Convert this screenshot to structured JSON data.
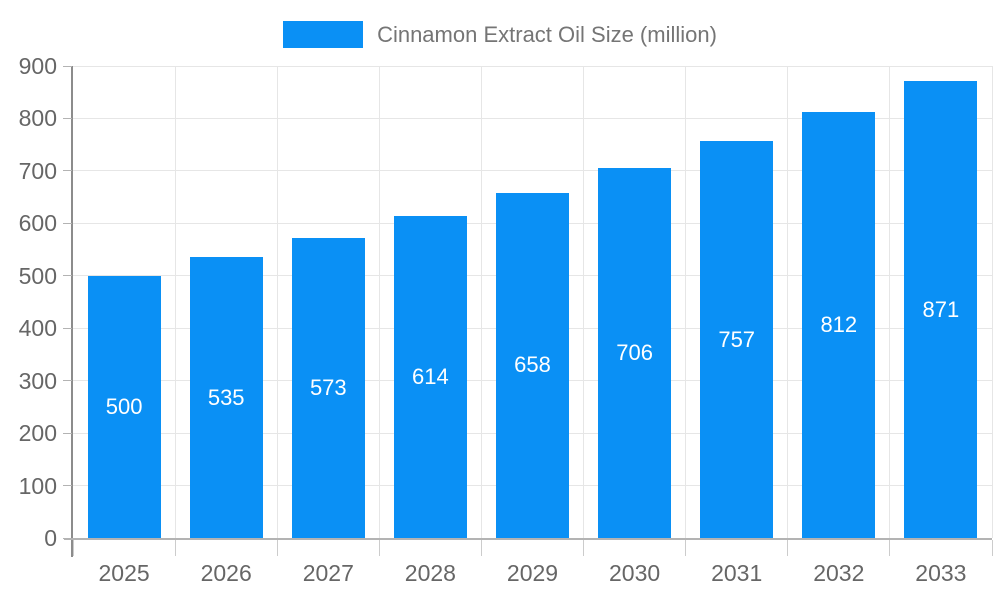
{
  "chart_data": {
    "type": "bar",
    "title": "Cinnamon Extract Oil Size (million)",
    "legend_entries": [
      "Cinnamon Extract Oil Size (million)"
    ],
    "categories": [
      "2025",
      "2026",
      "2027",
      "2028",
      "2029",
      "2030",
      "2031",
      "2032",
      "2033"
    ],
    "values": [
      500,
      535,
      573,
      614,
      658,
      706,
      757,
      812,
      871
    ],
    "xlabel": "",
    "ylabel": "",
    "ylim": [
      0,
      900
    ],
    "yticks": [
      0,
      100,
      200,
      300,
      400,
      500,
      600,
      700,
      800,
      900
    ],
    "grid": true,
    "legend_position": "top-center",
    "value_label_position": "inside-center"
  },
  "colors": {
    "bar": "#0A90F5",
    "value_label": "#FFFFFF",
    "axis_label": "#666666",
    "legend_text": "#757575",
    "gridline": "#E6E6E6",
    "x_axis_line": "#B3B3B3",
    "y_axis_line": "#8C8C8C",
    "tick": "#CCCCCC",
    "background": "#FFFFFF"
  }
}
